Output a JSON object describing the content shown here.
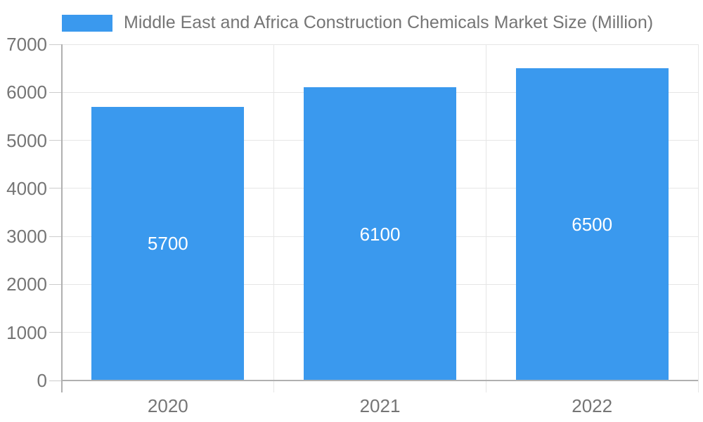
{
  "chart_data": {
    "type": "bar",
    "title": "Middle East and Africa Construction Chemicals Market Size (Million)",
    "categories": [
      "2020",
      "2021",
      "2022"
    ],
    "values": [
      5700,
      6100,
      6500
    ],
    "bar_labels": [
      "5700",
      "6100",
      "6500"
    ],
    "series": [
      {
        "name": "Middle East and Africa Construction Chemicals Market Size (Million)",
        "values": [
          5700,
          6100,
          6500
        ]
      }
    ],
    "xlabel": "",
    "ylabel": "",
    "ylim": [
      0,
      7000
    ],
    "ytick_step": 1000,
    "ytick_labels": [
      "0",
      "1000",
      "2000",
      "3000",
      "4000",
      "5000",
      "6000",
      "7000"
    ],
    "grid": true,
    "legend_position": "top-left",
    "colors": {
      "bar": "#3a99ee",
      "grid": "#e6e6e6",
      "axis": "#b0b0b0",
      "tick": "#cccccc",
      "text": "#757575",
      "value_label": "#ffffff",
      "background": "#ffffff"
    }
  }
}
